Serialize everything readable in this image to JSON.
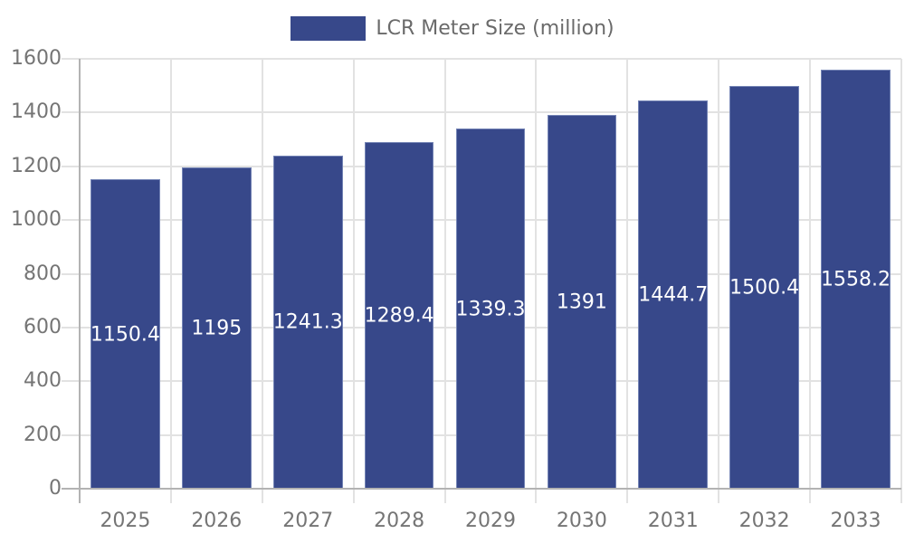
{
  "legend": {
    "label": "LCR Meter Size (million)"
  },
  "colors": {
    "background": "#FFFFFF",
    "bar": "#37488A",
    "bar_border": "#7484B5",
    "grid": "#E2E2E2",
    "axis": "#B3B3B3",
    "axis_text": "#757575",
    "legend_text": "#6A6A6A",
    "bar_label_text": "#FFFFFF"
  },
  "chart_data": {
    "type": "bar",
    "title": "LCR Meter Size (million)",
    "categories": [
      "2025",
      "2026",
      "2027",
      "2028",
      "2029",
      "2030",
      "2031",
      "2032",
      "2033"
    ],
    "series": [
      {
        "name": "LCR Meter Size (million)",
        "values": [
          1150.4,
          1195,
          1241.3,
          1289.4,
          1339.3,
          1391,
          1444.7,
          1500.4,
          1558.2
        ]
      }
    ],
    "xlabel": "",
    "ylabel": "",
    "ylim": [
      0,
      1600
    ],
    "yticks": [
      0,
      200,
      400,
      600,
      800,
      1000,
      1200,
      1400,
      1600
    ],
    "grid": true,
    "legend_position": "top",
    "bar_labels": "inside-center"
  }
}
